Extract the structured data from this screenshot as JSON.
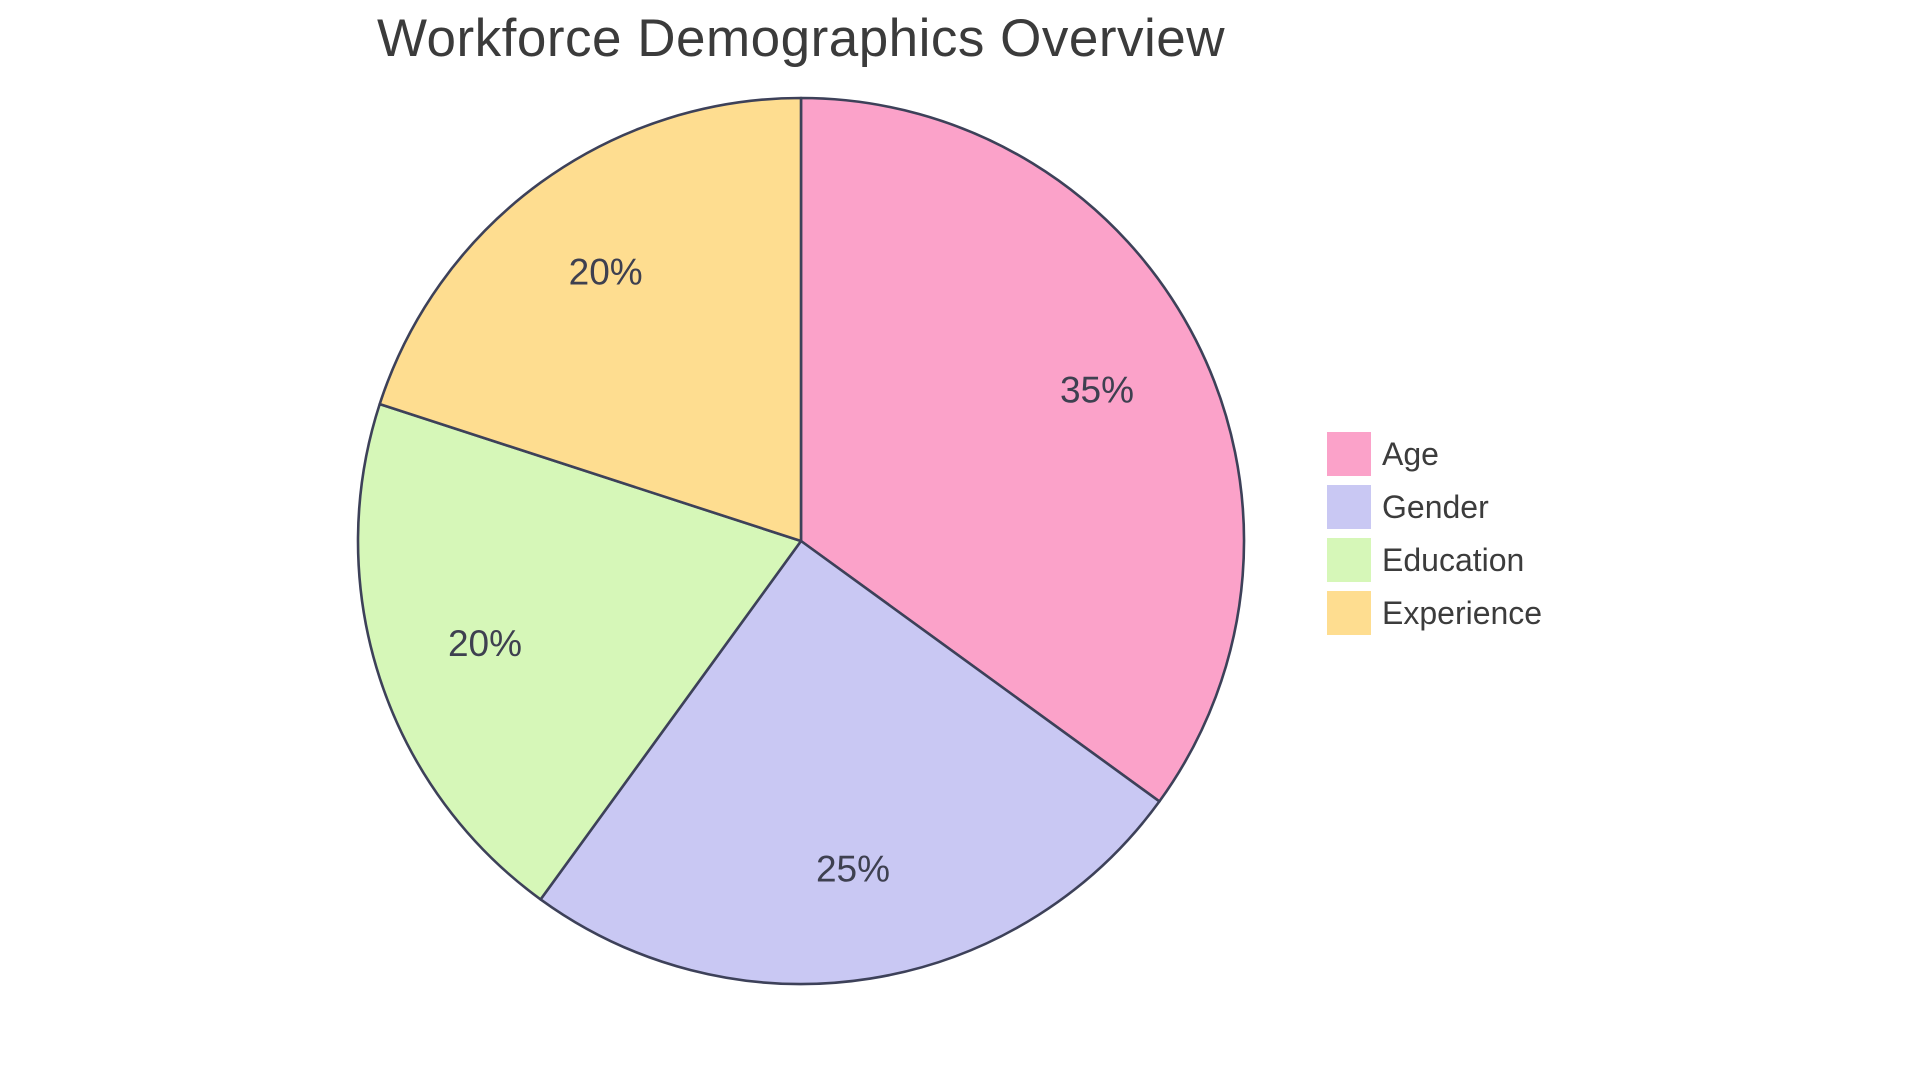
{
  "chart_data": {
    "type": "pie",
    "title": "Workforce Demographics Overview",
    "labels": [
      "Age",
      "Gender",
      "Education",
      "Experience"
    ],
    "values": [
      35,
      25,
      20,
      20
    ],
    "slice_labels": [
      "35%",
      "25%",
      "20%",
      "20%"
    ],
    "colors": [
      "#FBA2C9",
      "#C9C8F3",
      "#D6F7B8",
      "#FEDD90"
    ],
    "stroke_color": "#3D4159",
    "slice_label_color": "#3E4050",
    "title_color": "#3B3B3B",
    "legend_text_color": "#3C3C3C",
    "legend_position": "right",
    "start_angle": "top",
    "direction": "clockwise",
    "background": "#FFFFFF"
  }
}
